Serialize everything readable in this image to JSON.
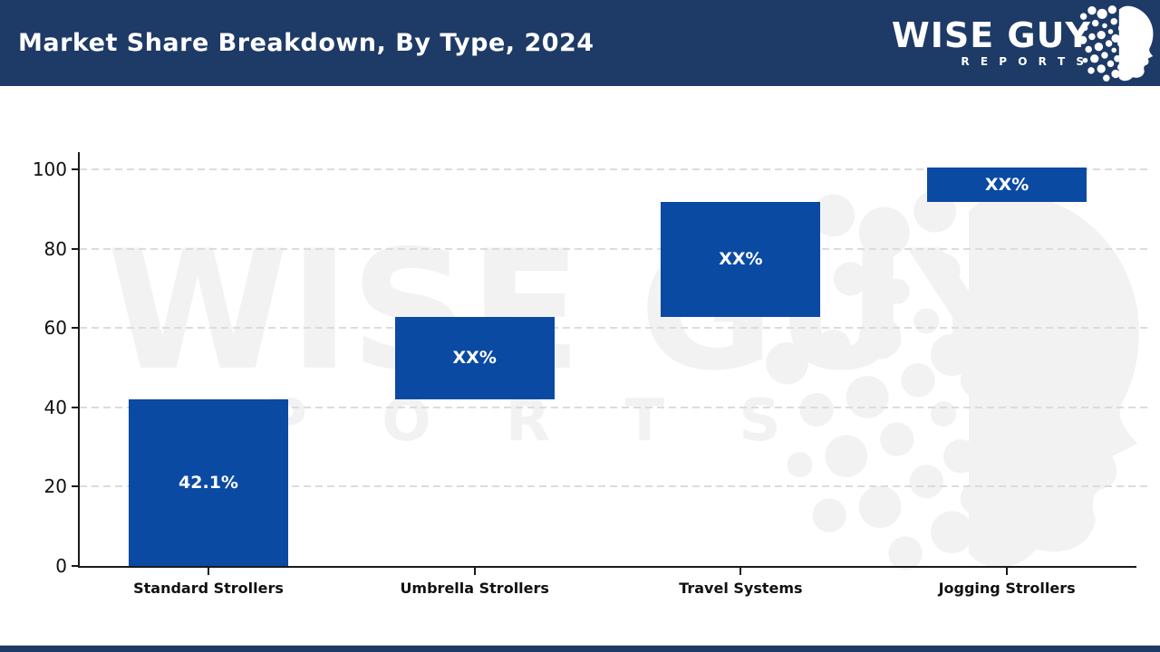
{
  "header": {
    "title": "Market Share Breakdown, By Type, 2024",
    "logo": {
      "line1": "WISE GUY",
      "line2": "R E P O R T S"
    }
  },
  "watermark": {
    "line1": "WISE GUY",
    "line2": "P O R T S"
  },
  "colors": {
    "header_bg": "#1e3a66",
    "bar_fill": "#0b4aa3",
    "bar_label": "#ffffff",
    "grid": "#dcdcdc",
    "axis": "#1a1a1a",
    "tick_text": "#111111",
    "watermark": "#f2f2f2"
  },
  "chart_data": {
    "type": "bar",
    "subtype": "waterfall-floating-bars",
    "title": "Market Share Breakdown, By Type, 2024",
    "categories": [
      "Standard Strollers",
      "Umbrella Strollers",
      "Travel Systems",
      "Jogging Strollers"
    ],
    "segments": [
      {
        "category": "Standard Strollers",
        "start": 0,
        "end": 42.1,
        "label": "42.1%"
      },
      {
        "category": "Umbrella Strollers",
        "start": 42.1,
        "end": 62.8,
        "label": "XX%"
      },
      {
        "category": "Travel Systems",
        "start": 62.8,
        "end": 91.8,
        "label": "XX%"
      },
      {
        "category": "Jogging Strollers",
        "start": 91.8,
        "end": 100.4,
        "label": "XX%"
      }
    ],
    "yticks": [
      0,
      20,
      40,
      60,
      80,
      100
    ],
    "ylim": [
      0,
      104
    ],
    "xlabel": "",
    "ylabel": "",
    "grid": "horizontal-dashed",
    "legend": "none"
  }
}
